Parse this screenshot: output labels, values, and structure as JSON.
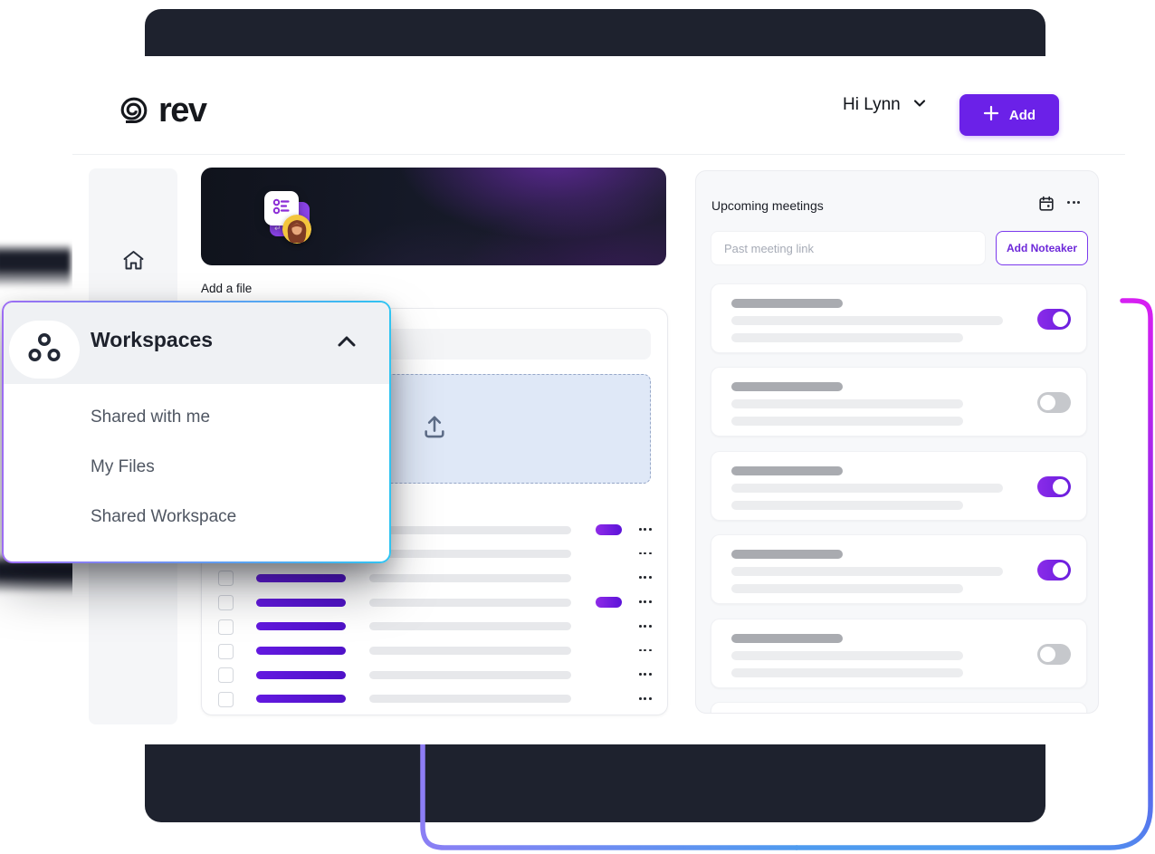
{
  "brand": {
    "logo_text": "rev",
    "logo_icon": "spiral-icon"
  },
  "header": {
    "greeting": "Hi Lynn",
    "greeting_menu_icon": "chevron-down-icon",
    "add_button_label": "Add",
    "add_button_icon": "plus-icon"
  },
  "sidebar": {
    "items": [
      {
        "icon": "home-icon"
      },
      {
        "icon": "calendar-icon"
      }
    ]
  },
  "banner": {
    "skeleton_bar_widths": [
      301,
      257,
      301
    ],
    "icons": [
      "checklist-icon",
      "arrow-right-icon",
      "return-arrow-icon",
      "avatar"
    ]
  },
  "files_section": {
    "add_file_label": "Add a file",
    "upload_icon": "upload-icon",
    "rows": [
      {
        "checkbox": true,
        "badge": true,
        "menu_icon": "more-dots-icon"
      },
      {
        "checkbox": true,
        "badge": false,
        "menu_icon": "more-dots-icon"
      },
      {
        "checkbox": true,
        "badge": false,
        "menu_icon": "more-dots-icon"
      },
      {
        "checkbox": true,
        "badge": true,
        "menu_icon": "more-dots-icon"
      },
      {
        "checkbox": true,
        "badge": false,
        "menu_icon": "more-dots-icon"
      },
      {
        "checkbox": true,
        "badge": false,
        "menu_icon": "more-dots-icon"
      },
      {
        "checkbox": true,
        "badge": false,
        "menu_icon": "more-dots-icon"
      },
      {
        "checkbox": true,
        "badge": false,
        "menu_icon": "more-dots-icon"
      }
    ]
  },
  "meetings_panel": {
    "title": "Upcoming meetings",
    "header_icons": [
      "calendar-dot-icon",
      "more-dots-icon"
    ],
    "input_placeholder": "Past meeting link",
    "add_noteaker_label": "Add Noteaker",
    "cards": [
      {
        "toggle": "on",
        "line2_width": 300,
        "line3_width": 256
      },
      {
        "toggle": "off",
        "line2_width": 256,
        "line3_width": 256
      },
      {
        "toggle": "on",
        "line2_width": 300,
        "line3_width": 256
      },
      {
        "toggle": "on",
        "line2_width": 300,
        "line3_width": 256
      },
      {
        "toggle": "off",
        "line2_width": 256,
        "line3_width": 256
      },
      {
        "toggle": "none",
        "partial": true
      }
    ]
  },
  "workspaces_popup": {
    "icon": "workspaces-icon",
    "title": "Workspaces",
    "collapse_icon": "chevron-up-icon",
    "items": [
      "Shared with me",
      "My Files",
      "Shared Workspace"
    ]
  },
  "colors": {
    "accent_purple": "#6B21E8",
    "deep_purple_bar": "#5517D2",
    "toggle_on": "#7C2BE8",
    "toggle_off": "#C6C8CC",
    "frame_dark": "#1E222E",
    "popup_border_start": "#9D6DF3",
    "popup_border_end": "#2FC4F2",
    "line_gradient": [
      "#D81FF2",
      "#8F2BE8",
      "#5E55EC",
      "#4E9BEF"
    ],
    "upload_bg": "#DFE8F7"
  }
}
